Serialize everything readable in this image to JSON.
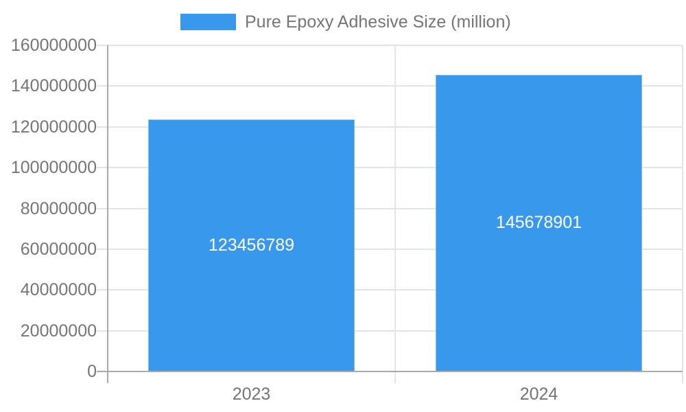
{
  "chart_data": {
    "type": "bar",
    "title": "Pure Epoxy Adhesive Size (million)",
    "categories": [
      "2023",
      "2024"
    ],
    "series": [
      {
        "name": "Pure Epoxy Adhesive Size (million)",
        "values": [
          123456789,
          145678901
        ]
      }
    ],
    "value_labels": [
      "123456789",
      "145678901"
    ],
    "y_ticks": [
      0,
      20000000,
      40000000,
      60000000,
      80000000,
      100000000,
      120000000,
      140000000,
      160000000
    ],
    "y_tick_labels": [
      "0",
      "20000000",
      "40000000",
      "60000000",
      "80000000",
      "100000000",
      "120000000",
      "140000000",
      "160000000"
    ],
    "ylim": [
      0,
      160000000
    ],
    "xlabel": "",
    "ylabel": "",
    "grid": true,
    "legend_position": "top"
  },
  "colors": {
    "bar": "#3898EC",
    "text_muted": "#757575",
    "value_text": "#FFFFFF",
    "axis": "#A9A9A9",
    "grid": "#E4E4E4",
    "background": "#FFFFFF"
  }
}
